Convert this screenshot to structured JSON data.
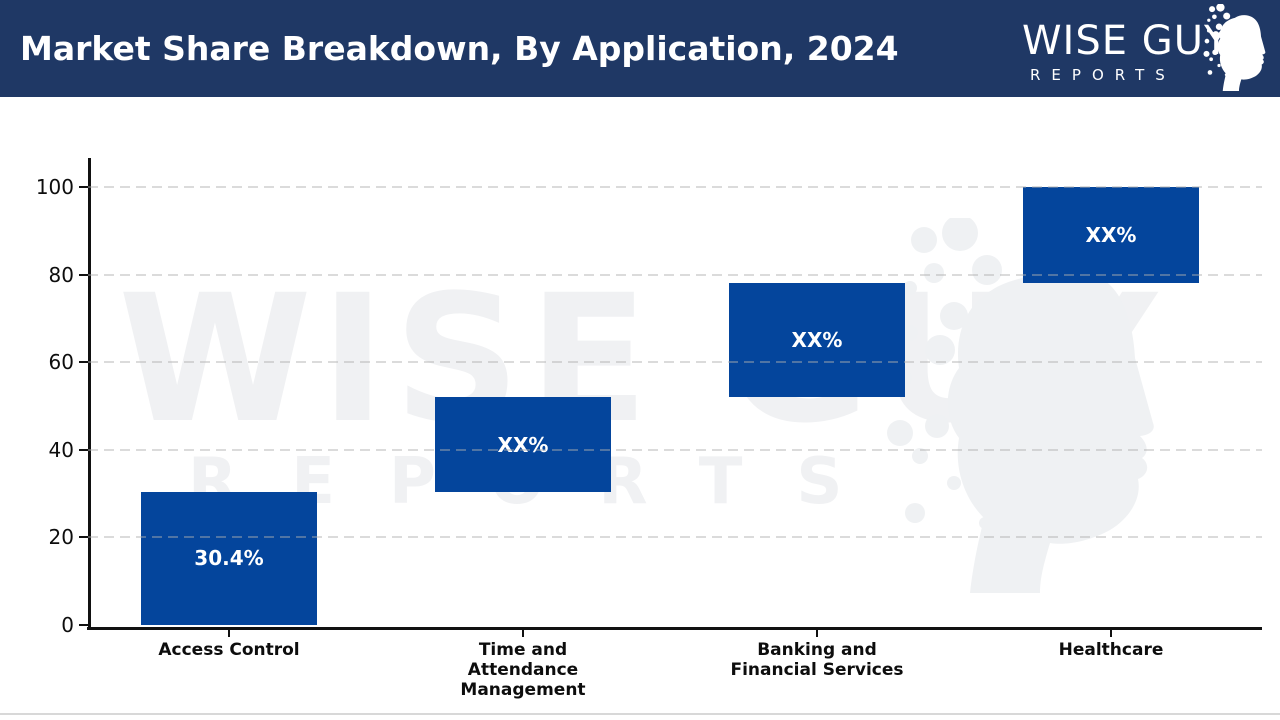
{
  "header": {
    "title": "Market Share Breakdown, By Application, 2024",
    "logo": {
      "name": "WISE GUY",
      "sub": "REPORTS"
    }
  },
  "watermark": {
    "name": "WISE GUY",
    "sub": "REPORTS"
  },
  "chart_data": {
    "type": "bar",
    "subtype": "floating-segment-waterfall",
    "title": "Market Share Breakdown, By Application, 2024",
    "categories": [
      {
        "lines": [
          "Access Control"
        ]
      },
      {
        "lines": [
          "Time and",
          "Attendance",
          "Management"
        ]
      },
      {
        "lines": [
          "Banking and",
          "Financial Services"
        ]
      },
      {
        "lines": [
          "Healthcare"
        ]
      }
    ],
    "segments": [
      {
        "category": "Access Control",
        "start": 0,
        "end": 30.4,
        "label": "30.4%"
      },
      {
        "category": "Time and Attendance Management",
        "start": 30.4,
        "end": 52,
        "label": "XX%"
      },
      {
        "category": "Banking and Financial Services",
        "start": 52,
        "end": 78,
        "label": "XX%"
      },
      {
        "category": "Healthcare",
        "start": 78,
        "end": 100,
        "label": "XX%"
      }
    ],
    "xlabel": "",
    "ylabel": "",
    "ylim": [
      0,
      100
    ],
    "yticks": [
      0,
      20,
      40,
      60,
      80,
      100
    ],
    "grid": true,
    "grid_style": "dashed",
    "legend": null,
    "bar_color": "#04459C",
    "bar_label_color": "#FFFFFF",
    "axis_color": "#111111",
    "header_bg": "#1F3865",
    "watermark_color": "#F0F1F3"
  }
}
